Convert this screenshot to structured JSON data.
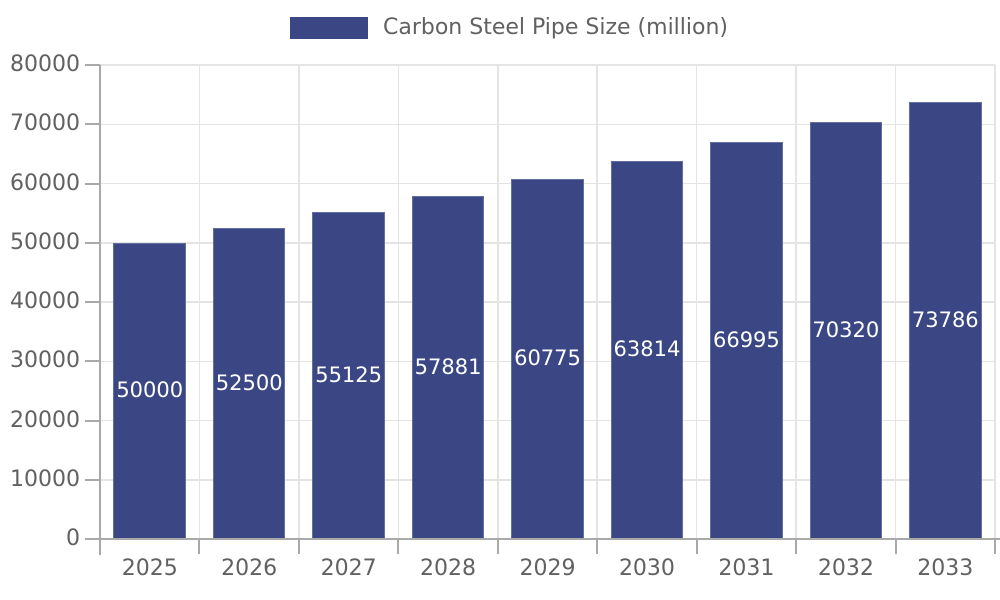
{
  "legend": {
    "label": "Carbon Steel Pipe Size (million)",
    "swatch_color": "#3A4784"
  },
  "chart_data": {
    "type": "bar",
    "title": "",
    "xlabel": "",
    "ylabel": "",
    "categories": [
      "2025",
      "2026",
      "2027",
      "2028",
      "2029",
      "2030",
      "2031",
      "2032",
      "2033"
    ],
    "series": [
      {
        "name": "Carbon Steel Pipe Size (million)",
        "values": [
          50000,
          52500,
          55125,
          57881,
          60775,
          63814,
          66995,
          70320,
          73786
        ]
      }
    ],
    "value_labels_shown": true,
    "value_label_position": "inside-center",
    "ylim": [
      0,
      80000
    ],
    "ytick_step": 10000,
    "ytick_labels": [
      "0",
      "10000",
      "20000",
      "30000",
      "40000",
      "50000",
      "60000",
      "70000",
      "80000"
    ],
    "grid": true,
    "grid_horizontal": true,
    "grid_vertical": true,
    "legend_position": "top-center",
    "bar_color": "#3A4784",
    "bar_label_color": "#FFFFFF",
    "axis_text_color": "#616161",
    "axis_line_color": "#A9A9A9",
    "gridline_color": "#E4E4E4",
    "background_color": "#FFFFFF"
  }
}
